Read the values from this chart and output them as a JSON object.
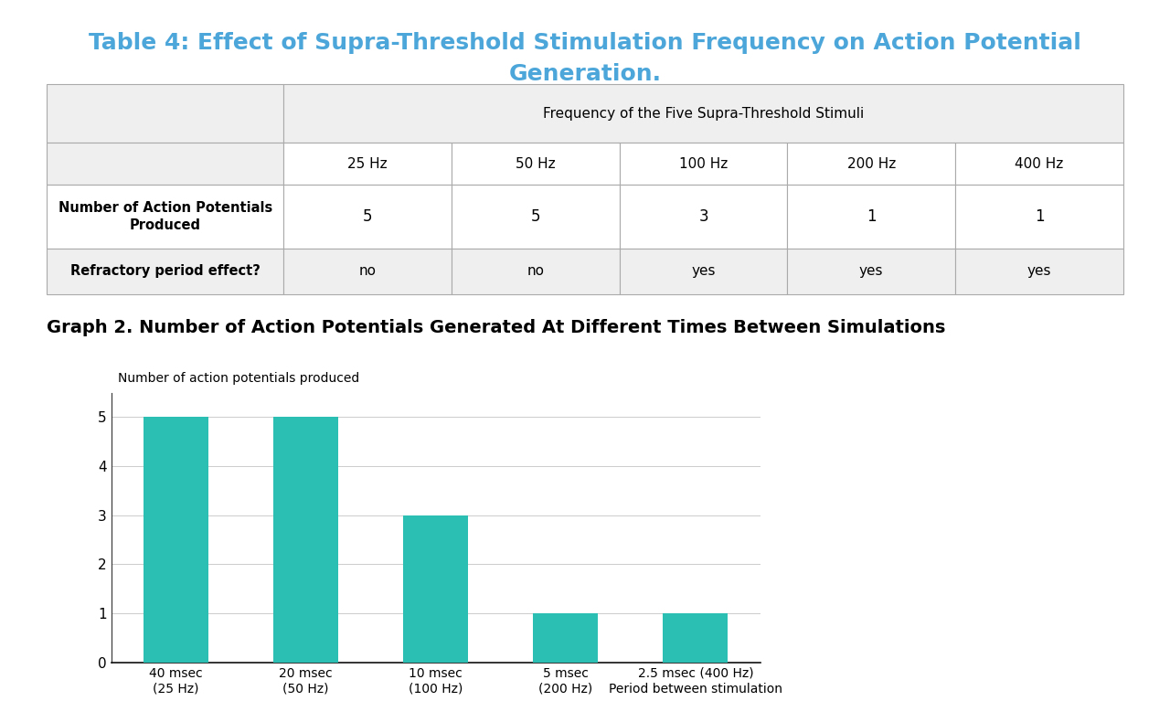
{
  "table_title_line1": "Table 4: Effect of Supra-Threshold Stimulation Frequency on Action Potential",
  "table_title_line2": "Generation.",
  "table_title_color": "#4DA6D9",
  "table_header_main": "Frequency of the Five Supra-Threshold Stimuli",
  "table_col_headers": [
    "25 Hz",
    "50 Hz",
    "100 Hz",
    "200 Hz",
    "400 Hz"
  ],
  "table_row_header_1": "Number of Action Potentials\nProduced",
  "table_row_header_2": "Refractory period effect?",
  "table_data_row1": [
    "5",
    "5",
    "3",
    "1",
    "1"
  ],
  "table_data_row2": [
    "no",
    "no",
    "yes",
    "yes",
    "yes"
  ],
  "graph_title": "Graph 2. Number of Action Potentials Generated At Different Times Between Simulations",
  "graph_ylabel_inside": "Number of action potentials produced",
  "bar_labels": [
    "40 msec\n(25 Hz)",
    "20 msec\n(50 Hz)",
    "10 msec\n(100 Hz)",
    "5 msec\n(200 Hz)",
    "2.5 msec (400 Hz)\nPeriod between stimulation"
  ],
  "bar_values": [
    5,
    5,
    3,
    1,
    1
  ],
  "bar_color": "#2BBFB3",
  "background_color": "#FFFFFF",
  "table_bg_light": "#EFEFEF",
  "table_bg_white": "#FFFFFF",
  "table_border_color": "#AAAAAA",
  "ylim": [
    0,
    5.5
  ],
  "yticks": [
    0,
    1,
    2,
    3,
    4,
    5
  ],
  "title_fontsize": 18,
  "graph_title_fontsize": 14
}
